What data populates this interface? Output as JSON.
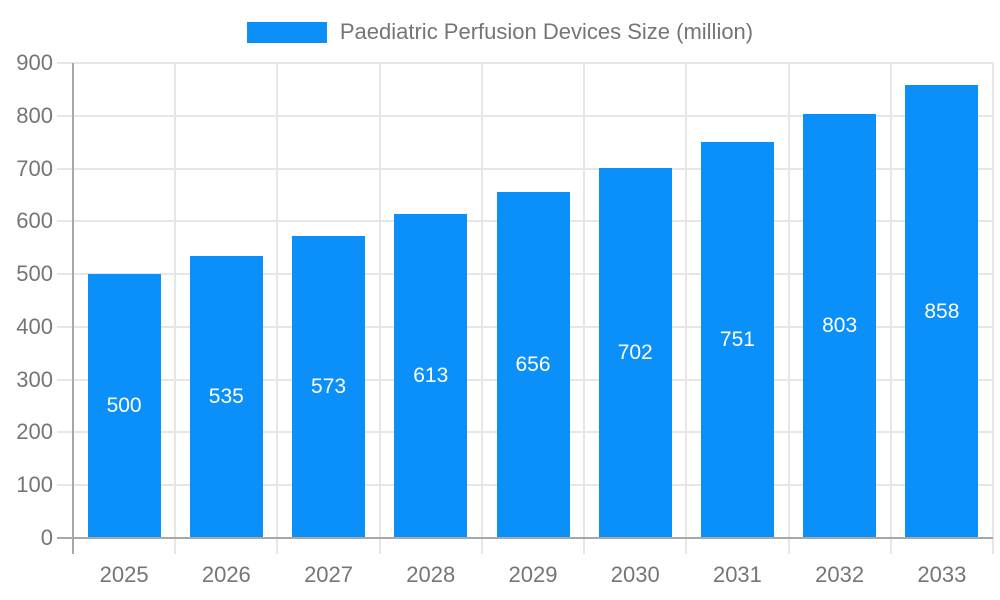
{
  "legend": {
    "label": "Paediatric Perfusion Devices Size (million)"
  },
  "chart_data": {
    "type": "bar",
    "title": "Paediatric Perfusion Devices Size (million)",
    "categories": [
      "2025",
      "2026",
      "2027",
      "2028",
      "2029",
      "2030",
      "2031",
      "2032",
      "2033"
    ],
    "values": [
      500,
      535,
      573,
      613,
      656,
      702,
      751,
      803,
      858
    ],
    "xlabel": "",
    "ylabel": "",
    "ylim": [
      0,
      900
    ],
    "ytick_step": 100,
    "grid": true,
    "legend_position": "top-center",
    "colors": {
      "bar": "#0a90f8",
      "bar_value_text": "#ffffff",
      "axis_text": "#757575",
      "gridline": "#e6e6e6",
      "axis_line": "#a8a8a8"
    }
  }
}
